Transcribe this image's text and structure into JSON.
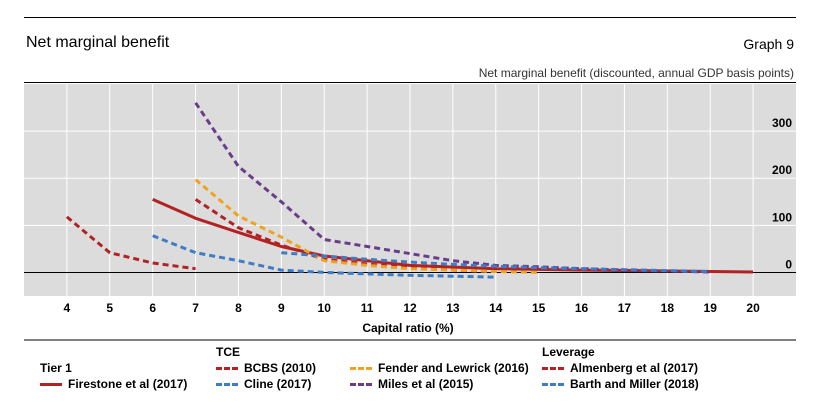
{
  "header": {
    "title": "Net marginal benefit",
    "graph_label": "Graph 9",
    "unit_note": "Net marginal benefit (discounted, annual GDP basis points)"
  },
  "legend": {
    "groups": [
      "Tier 1",
      "TCE",
      "Leverage"
    ]
  },
  "chart_data": {
    "type": "line",
    "title": "Net marginal benefit",
    "xlabel": "Capital ratio (%)",
    "ylabel": "Net marginal benefit (discounted, annual GDP basis points)",
    "xlim": [
      3,
      21
    ],
    "ylim": [
      -50,
      400
    ],
    "x_ticks": [
      4,
      5,
      6,
      7,
      8,
      9,
      10,
      11,
      12,
      13,
      14,
      15,
      16,
      17,
      18,
      19,
      20
    ],
    "y_ticks": [
      0,
      100,
      200,
      300
    ],
    "grid": true,
    "legend_position": "bottom",
    "series": [
      {
        "name": "Firestone et al (2017)",
        "group": "Tier 1",
        "style": "solid",
        "color": "#b22222",
        "x": [
          6,
          7,
          8,
          9,
          10,
          12,
          14,
          16,
          18,
          20
        ],
        "y": [
          155,
          115,
          85,
          55,
          35,
          15,
          8,
          5,
          3,
          1
        ]
      },
      {
        "name": "BCBS (2010)",
        "group": "TCE",
        "style": "dashed",
        "color": "#b22222",
        "x": [
          7,
          8,
          9,
          10,
          11,
          12,
          13,
          14
        ],
        "y": [
          155,
          95,
          58,
          28,
          18,
          10,
          5,
          2
        ]
      },
      {
        "name": "Cline (2017)",
        "group": "TCE",
        "style": "dashed",
        "color": "#3e7cc4",
        "x": [
          6,
          7,
          8,
          9,
          10,
          11,
          12,
          13,
          14
        ],
        "y": [
          78,
          42,
          25,
          5,
          0,
          -3,
          -6,
          -8,
          -10
        ]
      },
      {
        "name": "Fender and Lewrick (2016)",
        "group": "TCE",
        "style": "dashed",
        "color": "#f0a31e",
        "x": [
          7,
          8,
          9,
          10,
          11,
          12,
          13,
          14,
          15
        ],
        "y": [
          197,
          120,
          75,
          25,
          15,
          8,
          5,
          2,
          0
        ]
      },
      {
        "name": "Miles et al (2015)",
        "group": "TCE",
        "style": "dashed",
        "color": "#6a3d8a",
        "x": [
          7,
          8,
          9,
          10,
          11,
          12,
          13,
          14,
          15,
          16,
          17,
          18,
          19
        ],
        "y": [
          360,
          225,
          150,
          70,
          55,
          40,
          25,
          15,
          12,
          8,
          5,
          3,
          1
        ]
      },
      {
        "name": "Almenberg et al (2017)",
        "group": "Leverage",
        "style": "dashed",
        "color": "#b22222",
        "x": [
          4,
          5,
          6,
          7
        ],
        "y": [
          118,
          42,
          20,
          8
        ]
      },
      {
        "name": "Barth and Miller (2018)",
        "group": "Leverage",
        "style": "dashed",
        "color": "#3e7cc4",
        "x": [
          9,
          10,
          11,
          12,
          13,
          14,
          15,
          16,
          17,
          18,
          19
        ],
        "y": [
          42,
          35,
          28,
          22,
          17,
          13,
          10,
          8,
          6,
          4,
          2
        ]
      }
    ]
  }
}
